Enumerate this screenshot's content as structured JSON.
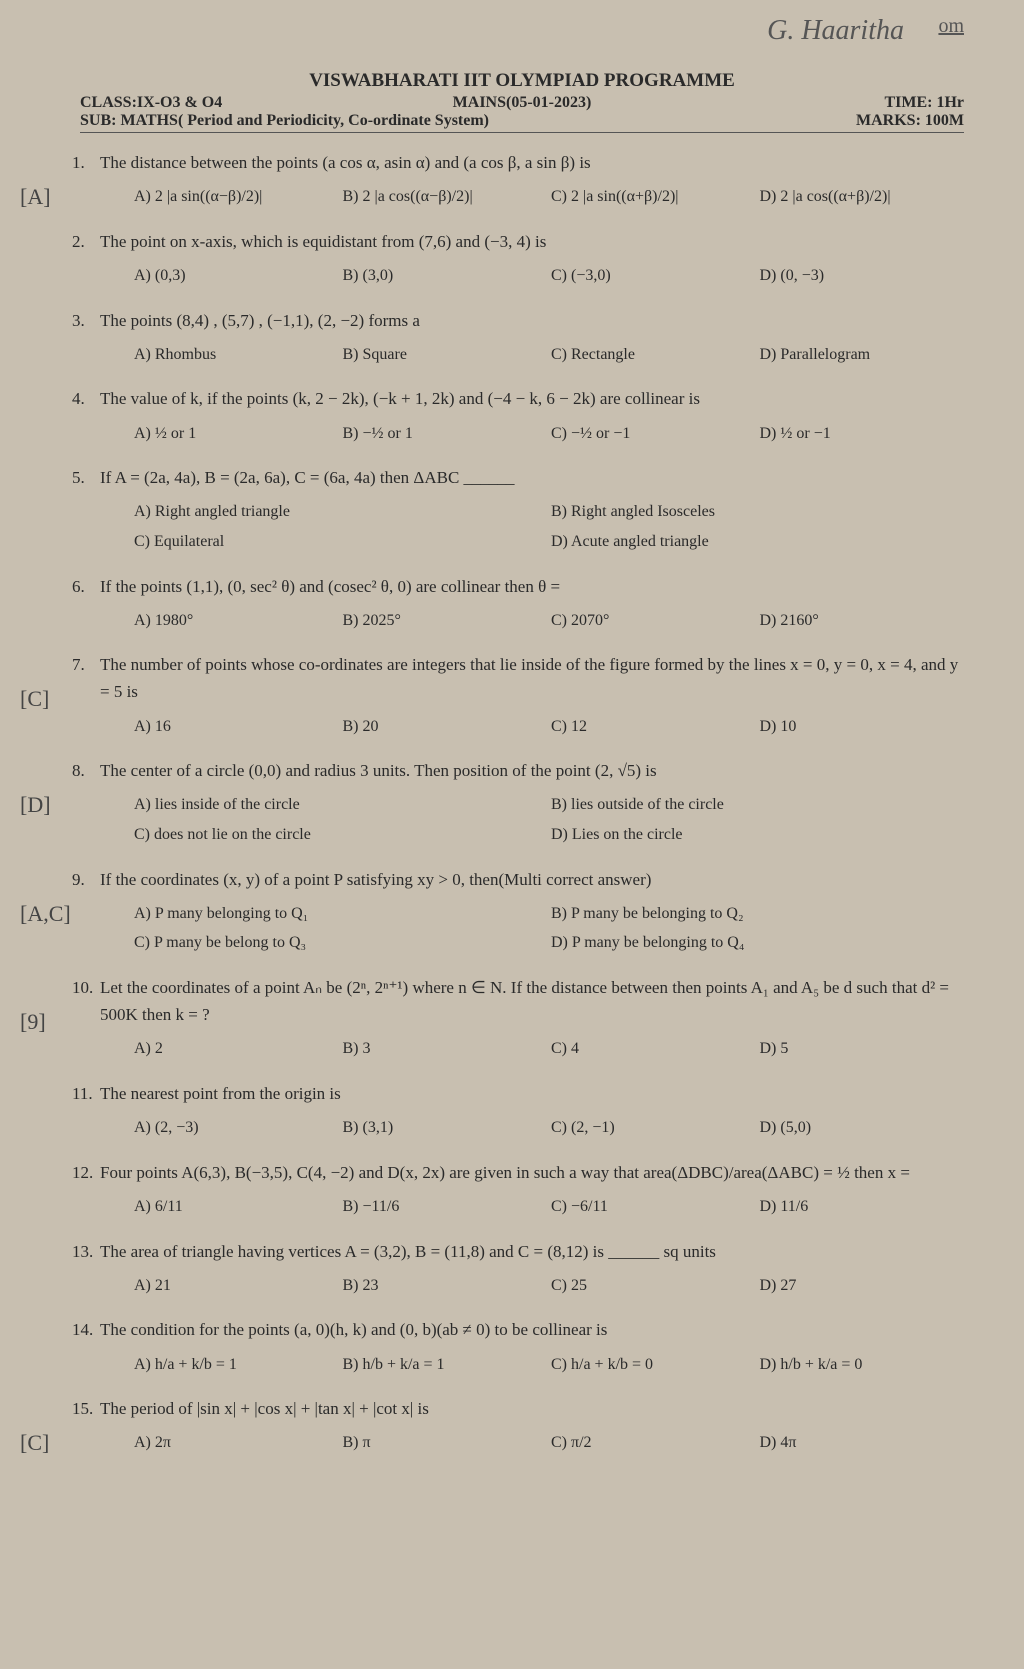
{
  "handwritten": {
    "name": "G. Haaritha",
    "om": "om"
  },
  "header": {
    "programme": "VISWABHARATI IIT OLYMPIAD PROGRAMME",
    "class_label": "CLASS:IX-O3 & O4",
    "mains": "MAINS(05-01-2023)",
    "time": "TIME: 1Hr",
    "sub": "SUB: MATHS( Period and Periodicity, Co-ordinate System)",
    "marks": "MARKS: 100M"
  },
  "questions": [
    {
      "num": "1.",
      "text": "The distance between the points (a cos α, asin α) and (a cos β, a sin β) is",
      "mark": "[A]",
      "opts": [
        {
          "label": "A) 2 |a sin((α−β)/2)|"
        },
        {
          "label": "B) 2 |a cos((α−β)/2)|"
        },
        {
          "label": "C) 2 |a sin((α+β)/2)|"
        },
        {
          "label": "D) 2 |a cos((α+β)/2)|"
        }
      ]
    },
    {
      "num": "2.",
      "text": "The point on x-axis, which is equidistant from (7,6) and (−3, 4) is",
      "opts": [
        {
          "label": "A) (0,3)"
        },
        {
          "label": "B) (3,0)"
        },
        {
          "label": "C) (−3,0)"
        },
        {
          "label": "D) (0, −3)"
        }
      ]
    },
    {
      "num": "3.",
      "text": "The points (8,4) , (5,7) , (−1,1), (2, −2) forms a",
      "opts": [
        {
          "label": "A) Rhombus"
        },
        {
          "label": "B) Square"
        },
        {
          "label": "C) Rectangle"
        },
        {
          "label": "D) Parallelogram"
        }
      ]
    },
    {
      "num": "4.",
      "text": "The value of k, if the points (k, 2 − 2k), (−k + 1, 2k) and (−4 − k, 6 − 2k) are collinear is",
      "opts": [
        {
          "label": "A) ½ or 1"
        },
        {
          "label": "B) −½ or 1"
        },
        {
          "label": "C) −½ or −1"
        },
        {
          "label": "D) ½ or −1"
        }
      ]
    },
    {
      "num": "5.",
      "text": "If A = (2a, 4a), B = (2a, 6a), C = (6a, 4a) then ΔABC ______",
      "opts": [
        {
          "label": "A) Right angled triangle",
          "half": true
        },
        {
          "label": "B) Right angled Isosceles",
          "half": true
        },
        {
          "label": "C) Equilateral",
          "half": true
        },
        {
          "label": "D) Acute angled triangle",
          "half": true
        }
      ]
    },
    {
      "num": "6.",
      "text": "If the points (1,1), (0, sec² θ) and (cosec² θ, 0) are collinear then θ =",
      "opts": [
        {
          "label": "A) 1980°"
        },
        {
          "label": "B) 2025°"
        },
        {
          "label": "C) 2070°"
        },
        {
          "label": "D) 2160°"
        }
      ]
    },
    {
      "num": "7.",
      "text": "The number of points whose co-ordinates are integers that lie inside of the figure formed by the lines x = 0, y = 0, x = 4, and y = 5 is",
      "mark": "[C]",
      "opts": [
        {
          "label": "A) 16"
        },
        {
          "label": "B) 20"
        },
        {
          "label": "C) 12"
        },
        {
          "label": "D) 10"
        }
      ]
    },
    {
      "num": "8.",
      "text": "The center of a circle (0,0) and radius 3 units. Then position of the point (2, √5) is",
      "mark": "[D]",
      "opts": [
        {
          "label": "A) lies inside of the circle",
          "half": true
        },
        {
          "label": "B) lies outside of the circle",
          "half": true
        },
        {
          "label": "C) does not lie on the circle",
          "half": true
        },
        {
          "label": "D) Lies on the circle",
          "half": true
        }
      ]
    },
    {
      "num": "9.",
      "text": "If the coordinates (x, y) of a point P satisfying xy > 0, then(Multi correct answer)",
      "mark": "[A,C]",
      "opts": [
        {
          "label": "A) P many belonging to Q₁",
          "half": true
        },
        {
          "label": "B) P many be belonging to Q₂",
          "half": true
        },
        {
          "label": "C) P many be belong to Q₃",
          "half": true
        },
        {
          "label": "D) P many be belonging to Q₄",
          "half": true
        }
      ]
    },
    {
      "num": "10.",
      "text": "Let the coordinates of a point Aₙ be (2ⁿ, 2ⁿ⁺¹) where n ∈ N. If the distance between then points A₁ and A₅ be d such that d² = 500K then k = ?",
      "mark": "[9]",
      "opts": [
        {
          "label": "A) 2"
        },
        {
          "label": "B) 3"
        },
        {
          "label": "C) 4"
        },
        {
          "label": "D) 5"
        }
      ]
    },
    {
      "num": "11.",
      "text": "The nearest point from the origin is",
      "opts": [
        {
          "label": "A) (2, −3)"
        },
        {
          "label": "B) (3,1)"
        },
        {
          "label": "C) (2, −1)"
        },
        {
          "label": "D) (5,0)"
        }
      ]
    },
    {
      "num": "12.",
      "text": "Four points A(6,3), B(−3,5), C(4, −2) and D(x, 2x) are given in such a way that area(ΔDBC)/area(ΔABC) = ½ then x =",
      "opts": [
        {
          "label": "A) 6/11"
        },
        {
          "label": "B) −11/6"
        },
        {
          "label": "C) −6/11"
        },
        {
          "label": "D) 11/6"
        }
      ]
    },
    {
      "num": "13.",
      "text": "The area of triangle having vertices A = (3,2), B = (11,8) and C = (8,12) is ______ sq units",
      "opts": [
        {
          "label": "A) 21"
        },
        {
          "label": "B) 23"
        },
        {
          "label": "C) 25"
        },
        {
          "label": "D) 27"
        }
      ]
    },
    {
      "num": "14.",
      "text": "The condition for the points (a, 0)(h, k) and (0, b)(ab ≠ 0) to be collinear is",
      "opts": [
        {
          "label": "A) h/a + k/b = 1"
        },
        {
          "label": "B) h/b + k/a = 1"
        },
        {
          "label": "C) h/a + k/b = 0"
        },
        {
          "label": "D) h/b + k/a = 0"
        }
      ]
    },
    {
      "num": "15.",
      "text": "The period of |sin x| + |cos x| + |tan x| + |cot x| is",
      "mark": "[C]",
      "opts": [
        {
          "label": "A) 2π"
        },
        {
          "label": "B) π"
        },
        {
          "label": "C) π/2"
        },
        {
          "label": "D) 4π"
        }
      ]
    }
  ]
}
